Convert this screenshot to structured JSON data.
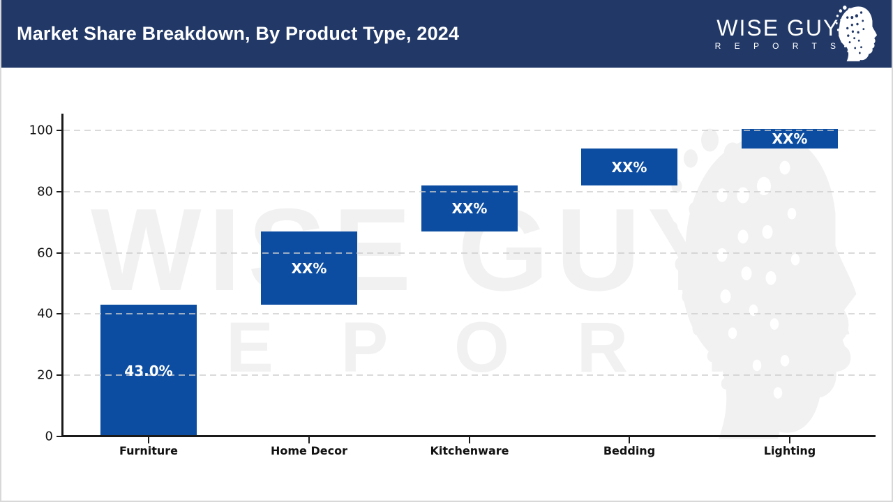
{
  "header": {
    "title": "Market Share Breakdown, By Product Type, 2024",
    "logo": {
      "line1": "WISE GUY",
      "line2": "R E P O R T S"
    }
  },
  "watermark": {
    "line1": "WISE GUY",
    "line2": "R E P O R T S"
  },
  "chart_data": {
    "type": "bar",
    "subtype": "waterfall",
    "title": "Market Share Breakdown, By Product Type, 2024",
    "categories": [
      "Furniture",
      "Home Decor",
      "Kitchenware",
      "Bedding",
      "Lighting"
    ],
    "segments": [
      {
        "category": "Furniture",
        "start": 0,
        "end": 43,
        "label": "43.0%"
      },
      {
        "category": "Home Decor",
        "start": 43,
        "end": 67,
        "label": "XX%"
      },
      {
        "category": "Kitchenware",
        "start": 67,
        "end": 82,
        "label": "XX%"
      },
      {
        "category": "Bedding",
        "start": 82,
        "end": 94,
        "label": "XX%"
      },
      {
        "category": "Lighting",
        "start": 94,
        "end": 100.5,
        "label": "XX%"
      }
    ],
    "xlabel": "",
    "ylabel": "",
    "yticks": [
      0,
      20,
      40,
      60,
      80,
      100
    ],
    "ylim": [
      0,
      105.5
    ],
    "grid": "horizontal-dashed",
    "legend": "none",
    "bar_color": "#0c4da2",
    "bar_label_color": "#ffffff"
  },
  "colors": {
    "header_bg": "#223968",
    "bar": "#0c4da2",
    "grid": "#dcdcdc",
    "axis": "#1a1a1a",
    "watermark": "#f1f1f1"
  }
}
